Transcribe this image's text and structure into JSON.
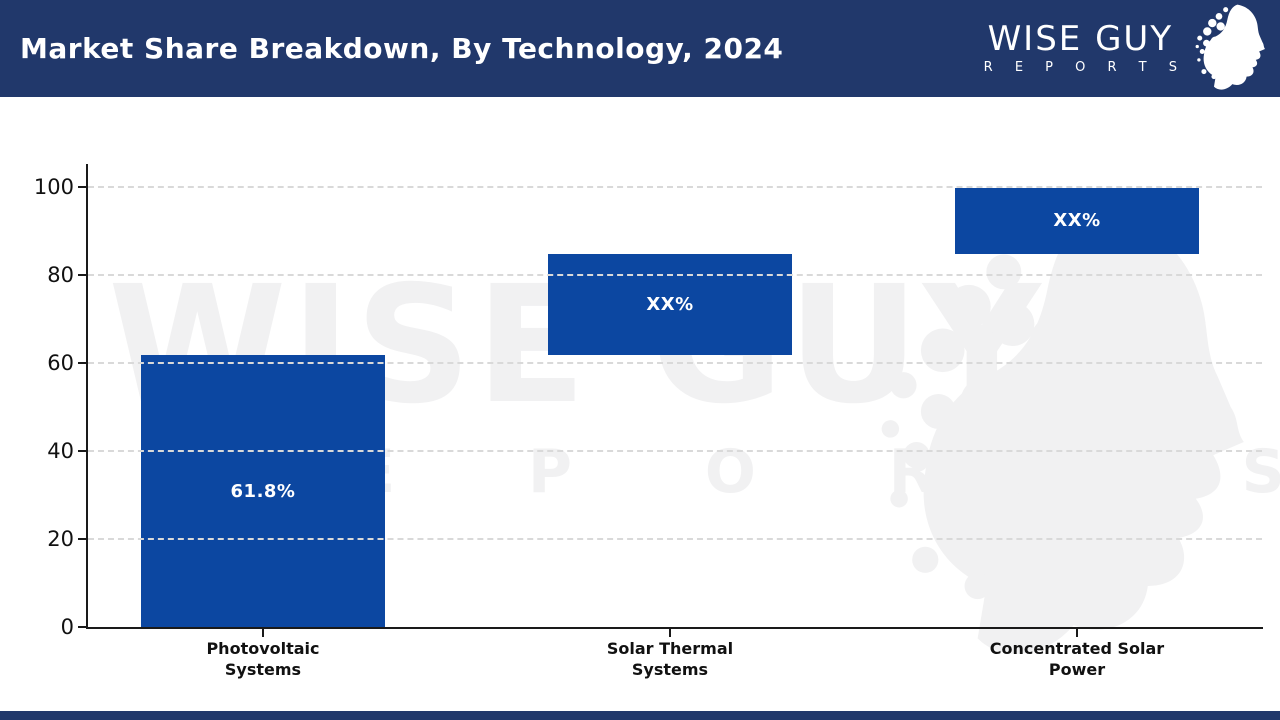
{
  "header": {
    "title": "Market Share Breakdown, By Technology, 2024",
    "logo": {
      "line1": "WISE GUY",
      "line2": "R E P O R T S",
      "icon": "dotted-head-profile"
    }
  },
  "watermark": {
    "line1": "WISE GUY",
    "line2": "R E P O R T S",
    "icon": "dotted-head-profile"
  },
  "colors": {
    "header_bg": "#21386b",
    "footer_bg": "#21386b",
    "bar": "#0c47a1",
    "bar_label_text": "#ffffff",
    "gridline": "#d9d9d9",
    "axis": "#1a1a1a",
    "watermark": "#f1f1f2"
  },
  "chart_data": {
    "type": "bar",
    "subtype": "floating-segment-waterfall",
    "title": "Market Share Breakdown, By Technology, 2024",
    "categories": [
      "Photovoltaic\nSystems",
      "Solar Thermal\nSystems",
      "Concentrated Solar\nPower"
    ],
    "segments": [
      {
        "category": "Photovoltaic Systems",
        "start": 0,
        "end": 61.8,
        "label": "61.8%"
      },
      {
        "category": "Solar Thermal Systems",
        "start": 61.8,
        "end": 84.8,
        "label": "XX%"
      },
      {
        "category": "Concentrated Solar Power",
        "start": 84.8,
        "end": 99.8,
        "label": "XX%"
      }
    ],
    "y_ticks": [
      0,
      20,
      40,
      60,
      80,
      100
    ],
    "ylim": [
      0,
      105
    ],
    "xlabel": "",
    "ylabel": "",
    "grid": "dashed-horizontal",
    "legend": "none"
  }
}
